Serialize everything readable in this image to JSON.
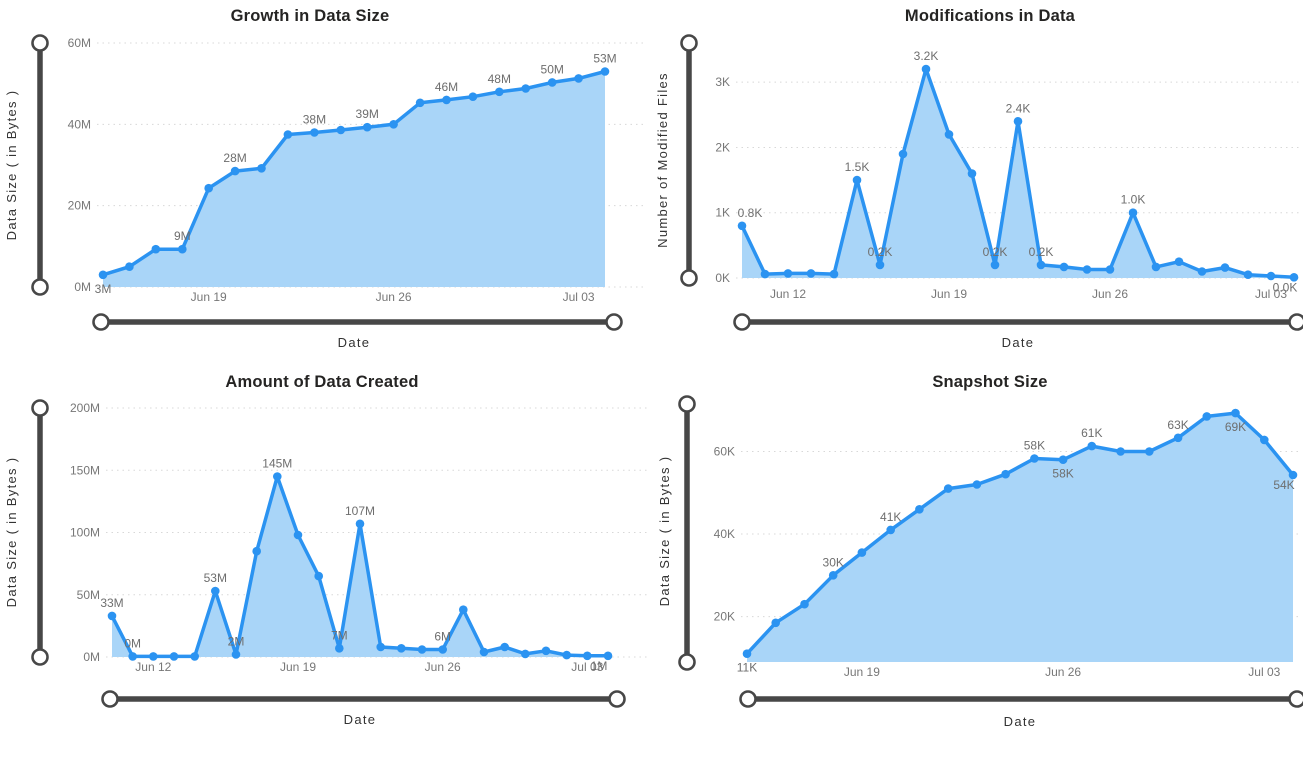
{
  "page": {
    "background": "#ffffff"
  },
  "colors": {
    "line": "#2b93f1",
    "area_fill": "#a9d5f8",
    "marker": "#2b93f1",
    "gridline": "#d8d8d8",
    "tick_text": "#777777",
    "data_label_text": "#6e6e6e",
    "title_text": "#252423",
    "slider": "#474747",
    "slider_handle_fill": "#ffffff"
  },
  "chart_data": [
    {
      "id": "growth-in-data-size",
      "type": "area",
      "title": "Growth in Data Size",
      "xlabel": "Date",
      "ylabel": "Data Size ( in Bytes )",
      "unit": "M bytes",
      "grid": true,
      "legend": false,
      "ylim": [
        0,
        60
      ],
      "x": [
        "Jun 15",
        "Jun 16",
        "Jun 17",
        "Jun 18",
        "Jun 19",
        "Jun 20",
        "Jun 21",
        "Jun 22",
        "Jun 23",
        "Jun 24",
        "Jun 25",
        "Jun 26",
        "Jun 27",
        "Jun 28",
        "Jun 29",
        "Jun 30",
        "Jul 01",
        "Jul 02",
        "Jul 03",
        "Jul 04"
      ],
      "values": [
        3,
        5,
        9.3,
        9.3,
        24.3,
        28.5,
        29.2,
        37.5,
        38,
        38.6,
        39.3,
        40,
        45.3,
        46,
        46.8,
        48,
        48.8,
        50.3,
        51.3,
        53
      ],
      "y_ticks": [
        {
          "v": 0,
          "label": "0M"
        },
        {
          "v": 20,
          "label": "20M"
        },
        {
          "v": 40,
          "label": "40M"
        },
        {
          "v": 60,
          "label": "60M"
        }
      ],
      "x_ticks": [
        {
          "i": 4,
          "label": "Jun 19"
        },
        {
          "i": 11,
          "label": "Jun 26"
        },
        {
          "i": 18,
          "label": "Jul 03"
        }
      ],
      "data_labels": [
        {
          "i": 0,
          "text": "3M",
          "pos": "below"
        },
        {
          "i": 3,
          "text": "9M",
          "pos": "above"
        },
        {
          "i": 5,
          "text": "28M",
          "pos": "above"
        },
        {
          "i": 8,
          "text": "38M",
          "pos": "above"
        },
        {
          "i": 10,
          "text": "39M",
          "pos": "above"
        },
        {
          "i": 13,
          "text": "46M",
          "pos": "above"
        },
        {
          "i": 15,
          "text": "48M",
          "pos": "above"
        },
        {
          "i": 17,
          "text": "50M",
          "pos": "above"
        },
        {
          "i": 19,
          "text": "53M",
          "pos": "above"
        }
      ]
    },
    {
      "id": "modifications-in-data",
      "type": "area",
      "title": "Modifications in Data",
      "xlabel": "Date",
      "ylabel": "Number of Modified Files",
      "unit": "K files",
      "grid": true,
      "legend": false,
      "ylim": [
        0,
        3.6
      ],
      "x": [
        "Jun 10",
        "Jun 11",
        "Jun 12",
        "Jun 13",
        "Jun 14",
        "Jun 15",
        "Jun 16",
        "Jun 17",
        "Jun 18",
        "Jun 19",
        "Jun 20",
        "Jun 21",
        "Jun 22",
        "Jun 23",
        "Jun 24",
        "Jun 25",
        "Jun 26",
        "Jun 27",
        "Jun 28",
        "Jun 29",
        "Jun 30",
        "Jul 01",
        "Jul 02",
        "Jul 03",
        "Jul 04"
      ],
      "values": [
        0.8,
        0.06,
        0.07,
        0.07,
        0.06,
        1.5,
        0.2,
        1.9,
        3.2,
        2.2,
        1.6,
        0.2,
        2.4,
        0.2,
        0.17,
        0.13,
        0.13,
        1.0,
        0.17,
        0.25,
        0.1,
        0.16,
        0.05,
        0.03,
        0.01
      ],
      "y_ticks": [
        {
          "v": 0,
          "label": "0K"
        },
        {
          "v": 1,
          "label": "1K"
        },
        {
          "v": 2,
          "label": "2K"
        },
        {
          "v": 3,
          "label": "3K"
        }
      ],
      "x_ticks": [
        {
          "i": 2,
          "label": "Jun 12"
        },
        {
          "i": 9,
          "label": "Jun 19"
        },
        {
          "i": 16,
          "label": "Jun 26"
        },
        {
          "i": 23,
          "label": "Jul 03"
        }
      ],
      "data_labels": [
        {
          "i": 0,
          "text": "0.8K",
          "pos": "above"
        },
        {
          "i": 5,
          "text": "1.5K",
          "pos": "above"
        },
        {
          "i": 6,
          "text": "0.2K",
          "pos": "above"
        },
        {
          "i": 8,
          "text": "3.2K",
          "pos": "above"
        },
        {
          "i": 11,
          "text": "0.2K",
          "pos": "above"
        },
        {
          "i": 12,
          "text": "2.4K",
          "pos": "above"
        },
        {
          "i": 13,
          "text": "0.2K",
          "pos": "above"
        },
        {
          "i": 17,
          "text": "1.0K",
          "pos": "above"
        },
        {
          "i": 24,
          "text": "0.0K",
          "pos": "below-left"
        }
      ]
    },
    {
      "id": "amount-of-data-created",
      "type": "area",
      "title": "Amount of Data Created",
      "xlabel": "Date",
      "ylabel": "Data Size ( in Bytes )",
      "unit": "M bytes",
      "grid": true,
      "legend": false,
      "ylim": [
        0,
        200
      ],
      "x": [
        "Jun 10",
        "Jun 11",
        "Jun 12",
        "Jun 13",
        "Jun 14",
        "Jun 15",
        "Jun 16",
        "Jun 17",
        "Jun 18",
        "Jun 19",
        "Jun 20",
        "Jun 21",
        "Jun 22",
        "Jun 23",
        "Jun 24",
        "Jun 25",
        "Jun 26",
        "Jun 27",
        "Jun 28",
        "Jun 29",
        "Jun 30",
        "Jul 01",
        "Jul 02",
        "Jul 03",
        "Jul 04"
      ],
      "values": [
        33,
        0.5,
        0.5,
        0.5,
        0.5,
        53,
        2,
        85,
        145,
        98,
        65,
        7,
        107,
        8,
        7,
        6,
        6,
        38,
        4,
        8,
        2.5,
        5,
        1.5,
        1,
        1
      ],
      "y_ticks": [
        {
          "v": 0,
          "label": "0M"
        },
        {
          "v": 50,
          "label": "50M"
        },
        {
          "v": 100,
          "label": "100M"
        },
        {
          "v": 150,
          "label": "150M"
        },
        {
          "v": 200,
          "label": "200M"
        }
      ],
      "x_ticks": [
        {
          "i": 2,
          "label": "Jun 12"
        },
        {
          "i": 9,
          "label": "Jun 19"
        },
        {
          "i": 16,
          "label": "Jun 26"
        },
        {
          "i": 23,
          "label": "Jul 03"
        }
      ],
      "data_labels": [
        {
          "i": 0,
          "text": "33M",
          "pos": "above"
        },
        {
          "i": 1,
          "text": "0M",
          "pos": "above"
        },
        {
          "i": 5,
          "text": "53M",
          "pos": "above"
        },
        {
          "i": 6,
          "text": "2M",
          "pos": "above"
        },
        {
          "i": 8,
          "text": "145M",
          "pos": "above"
        },
        {
          "i": 11,
          "text": "7M",
          "pos": "above"
        },
        {
          "i": 12,
          "text": "107M",
          "pos": "above"
        },
        {
          "i": 16,
          "text": "6M",
          "pos": "above"
        },
        {
          "i": 24,
          "text": "1M",
          "pos": "below-left"
        }
      ]
    },
    {
      "id": "snapshot-size",
      "type": "area",
      "title": "Snapshot Size",
      "xlabel": "Date",
      "ylabel": "Data Size ( in Bytes )",
      "unit": "K bytes",
      "grid": true,
      "legend": false,
      "ylim": [
        9,
        71.5
      ],
      "x": [
        "Jun 15",
        "Jun 16",
        "Jun 17",
        "Jun 18",
        "Jun 19",
        "Jun 20",
        "Jun 21",
        "Jun 22",
        "Jun 23",
        "Jun 24",
        "Jun 25",
        "Jun 26",
        "Jun 27",
        "Jun 28",
        "Jun 29",
        "Jun 30",
        "Jul 01",
        "Jul 02",
        "Jul 03",
        "Jul 04"
      ],
      "values": [
        11,
        18.5,
        23,
        30,
        35.5,
        41,
        46,
        51,
        52,
        54.5,
        58.3,
        58,
        61.3,
        60,
        60,
        63.3,
        68.5,
        69.3,
        62.8,
        54.3
      ],
      "y_ticks": [
        {
          "v": 20,
          "label": "20K"
        },
        {
          "v": 40,
          "label": "40K"
        },
        {
          "v": 60,
          "label": "60K"
        }
      ],
      "x_ticks": [
        {
          "i": 4,
          "label": "Jun 19"
        },
        {
          "i": 11,
          "label": "Jun 26"
        },
        {
          "i": 18,
          "label": "Jul 03"
        }
      ],
      "data_labels": [
        {
          "i": 0,
          "text": "11K",
          "pos": "below"
        },
        {
          "i": 3,
          "text": "30K",
          "pos": "above"
        },
        {
          "i": 5,
          "text": "41K",
          "pos": "above"
        },
        {
          "i": 10,
          "text": "58K",
          "pos": "above"
        },
        {
          "i": 11,
          "text": "58K",
          "pos": "below"
        },
        {
          "i": 12,
          "text": "61K",
          "pos": "above"
        },
        {
          "i": 15,
          "text": "63K",
          "pos": "above"
        },
        {
          "i": 17,
          "text": "69K",
          "pos": "below"
        },
        {
          "i": 19,
          "text": "54K",
          "pos": "below-left"
        }
      ]
    }
  ]
}
